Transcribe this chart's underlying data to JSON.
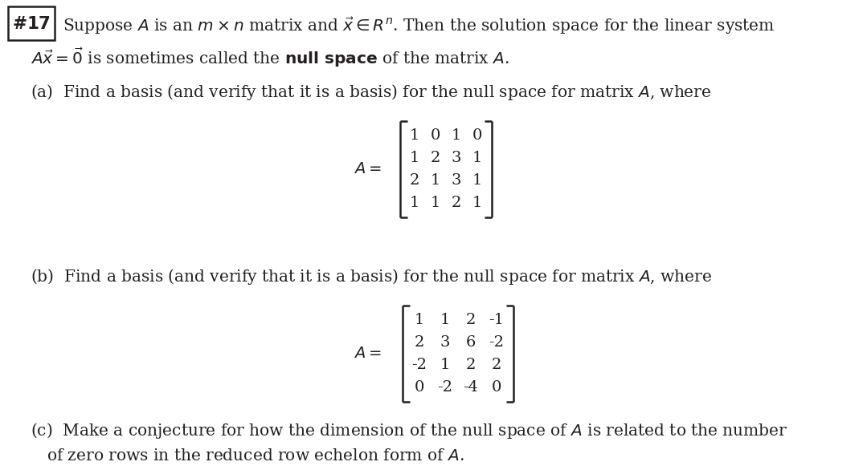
{
  "background_color": "#ffffff",
  "fig_width": 10.74,
  "fig_height": 5.91,
  "matrix_a": [
    [
      1,
      0,
      1,
      0
    ],
    [
      1,
      2,
      3,
      1
    ],
    [
      2,
      1,
      3,
      1
    ],
    [
      1,
      1,
      2,
      1
    ]
  ],
  "matrix_b": [
    [
      1,
      1,
      2,
      -1
    ],
    [
      2,
      3,
      6,
      -2
    ],
    [
      -2,
      1,
      2,
      2
    ],
    [
      0,
      -2,
      -4,
      0
    ]
  ],
  "fs_main": 14.5,
  "fs_matrix": 14.0,
  "text_color": "#231f20"
}
